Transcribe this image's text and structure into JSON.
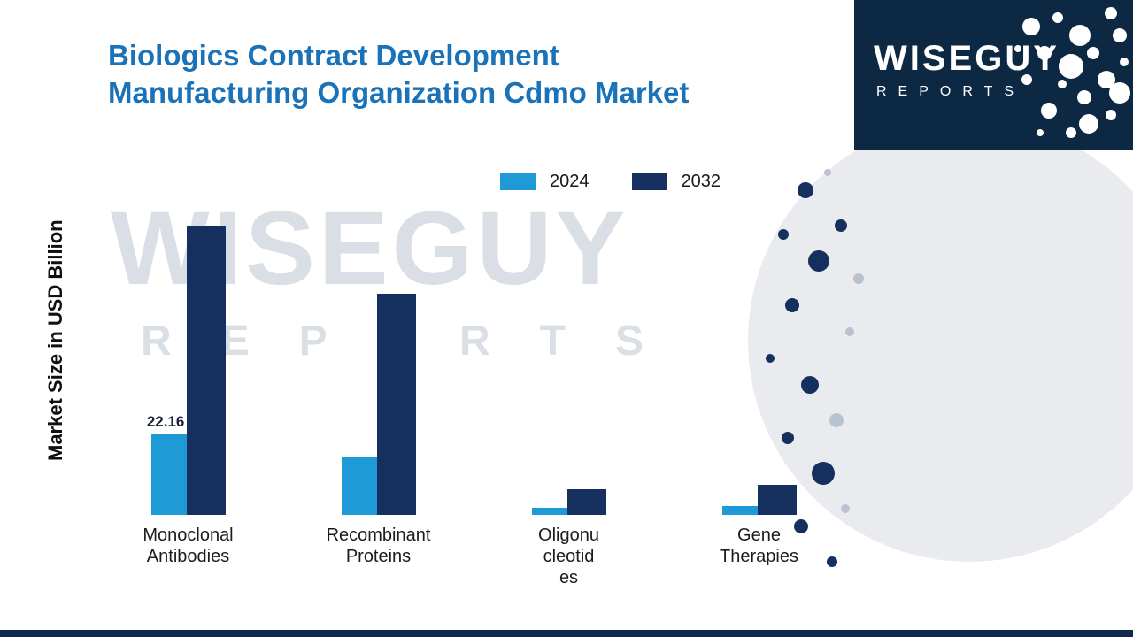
{
  "title": "Biologics Contract Development Manufacturing Organization Cdmo Market",
  "logo": {
    "line1": "WISEGUY",
    "line2": "REPORTS"
  },
  "watermark": {
    "line1": "WISEGUY",
    "line2": "REPORTS"
  },
  "ylabel": "Market Size in USD Billion",
  "legend": [
    {
      "label": "2024",
      "color": "#1e9ad6"
    },
    {
      "label": "2032",
      "color": "#152f5e"
    }
  ],
  "colors": {
    "title_blue": "#1a72b8",
    "bar_2024": "#1e9ad6",
    "bar_2032": "#152f5e",
    "logo_navy": "#0d2843",
    "watermark_gray": "#dadfe6",
    "head_gray": "#e9ebef"
  },
  "chart_data": {
    "type": "bar",
    "title": "Biologics Contract Development Manufacturing Organization Cdmo Market",
    "ylabel": "Market Size in USD Billion",
    "xlabel": "",
    "ylim": [
      0,
      85
    ],
    "grid": false,
    "legend_position": "top",
    "categories": [
      "Monoclonal Antibodies",
      "Recombinant Proteins",
      "Oligonucleotides",
      "Gene Therapies"
    ],
    "category_display": [
      "Monoclonal\nAntibodies",
      "Recombinant\nProteins",
      "Oligonu\ncleotid\nes",
      "Gene\nTherapies"
    ],
    "series": [
      {
        "name": "2024",
        "color": "#1e9ad6",
        "values": [
          22.16,
          15.6,
          2.0,
          2.3
        ]
      },
      {
        "name": "2032",
        "color": "#152f5e",
        "values": [
          79.0,
          60.3,
          7.0,
          8.3
        ]
      }
    ],
    "annotations": [
      {
        "series": "2024",
        "category": "Monoclonal Antibodies",
        "text": "22.16"
      }
    ]
  }
}
